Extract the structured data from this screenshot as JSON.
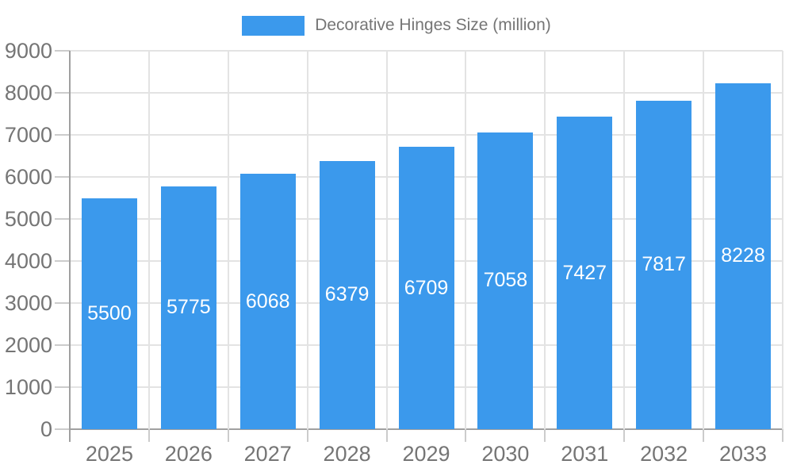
{
  "chart": {
    "legend": {
      "label": "Decorative Hinges Size (million)",
      "swatch_color": "#3B99EC"
    },
    "colors": {
      "bar": "#3B99EC",
      "bar_label_text": "#ffffff",
      "grid": "#e3e3e3",
      "axis_line": "#a0a0a0",
      "tick": "#cccccc",
      "axis_text": "#757575",
      "background": "#ffffff"
    }
  },
  "chart_data": {
    "type": "bar",
    "title": "Decorative Hinges Size (million)",
    "series_name": "Decorative Hinges Size (million)",
    "categories": [
      "2025",
      "2026",
      "2027",
      "2028",
      "2029",
      "2030",
      "2031",
      "2032",
      "2033"
    ],
    "values": [
      5500,
      5775,
      6068,
      6379,
      6709,
      7058,
      7427,
      7817,
      8228
    ],
    "bar_labels": [
      5500,
      5775,
      6068,
      6379,
      6709,
      7058,
      7427,
      7817,
      8228
    ],
    "xlabel": "",
    "ylabel": "",
    "ylim": [
      0,
      9000
    ],
    "ytick_step": 1000,
    "yticks": [
      "0",
      "1000",
      "2000",
      "3000",
      "4000",
      "5000",
      "6000",
      "7000",
      "8000",
      "9000"
    ],
    "grid": true,
    "legend_position": "top-center",
    "bar_label_position": "inside-center"
  }
}
